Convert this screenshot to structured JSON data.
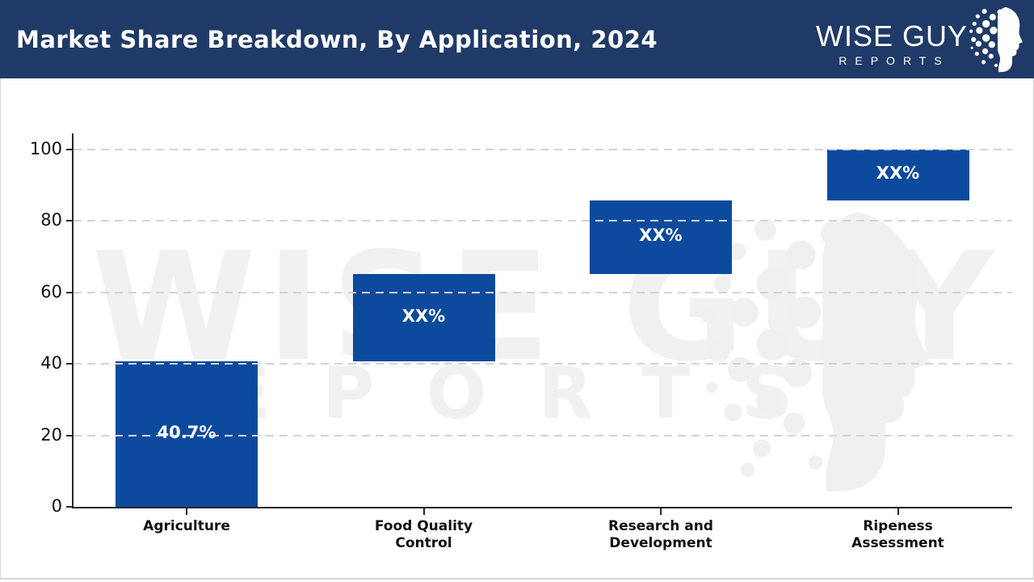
{
  "header": {
    "title": "Market Share Breakdown, By Application, 2024",
    "logo": {
      "line1": "WISE GUY",
      "line2": "REPORTS"
    }
  },
  "watermark": {
    "line1": "WISE GUY",
    "line2": "REPORTS"
  },
  "colors": {
    "header_bg": "#1f3a67",
    "bar": "#0c4a9e",
    "grid": "#d4d4d4",
    "axis": "#262626",
    "watermark": "#f1f1f1"
  },
  "chart_data": {
    "type": "bar",
    "subtype": "waterfall",
    "title": "Market Share Breakdown, By Application, 2024",
    "categories": [
      "Agriculture",
      "Food Quality Control",
      "Research and Development",
      "Ripeness Assessment"
    ],
    "categories_display": [
      "Agriculture",
      "Food Quality\nControl",
      "Research and\nDevelopment",
      "Ripeness\nAssessment"
    ],
    "bars": [
      {
        "category": "Agriculture",
        "start": 0,
        "end": 40.7,
        "label": "40.7%"
      },
      {
        "category": "Food Quality Control",
        "start": 40.7,
        "end": 65.2,
        "label": "XX%"
      },
      {
        "category": "Research and Development",
        "start": 65.2,
        "end": 85.8,
        "label": "XX%"
      },
      {
        "category": "Ripeness Assessment",
        "start": 85.8,
        "end": 100,
        "label": "XX%"
      }
    ],
    "ylabel": "",
    "xlabel": "",
    "yticks": [
      0,
      20,
      40,
      60,
      80,
      100
    ],
    "ylim": [
      0,
      104.5
    ],
    "grid": "horizontal dashed, drawn over bars",
    "legend": "none",
    "bar_color": "#0c4a9e",
    "value_label_color": "#ffffff"
  }
}
